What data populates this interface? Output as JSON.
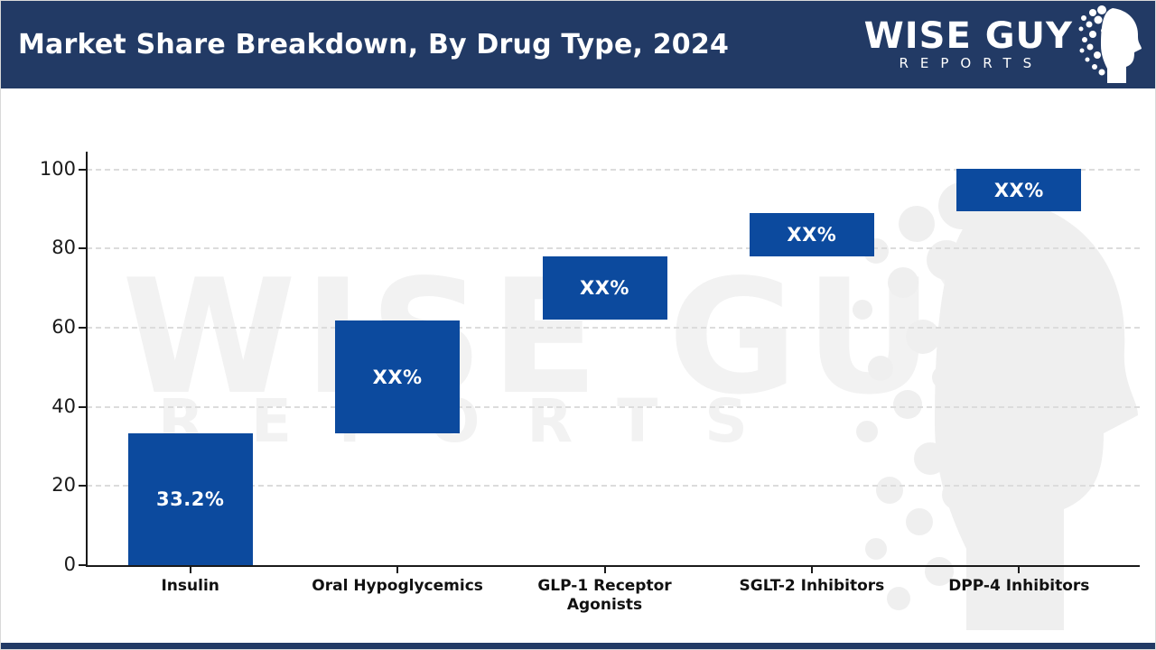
{
  "header": {
    "title": "Market Share Breakdown, By Drug Type, 2024",
    "logo": {
      "line1": "WISE GUY",
      "line2": "REPORTS"
    }
  },
  "watermark": {
    "line1": "WISE GUY",
    "line2": "REPORTS"
  },
  "colors": {
    "header_bg": "#223A65",
    "footer_bg": "#223A65",
    "bar": "#0C4A9E",
    "grid": "#DCDCDC",
    "axis": "#1A1A1A",
    "bar_label_text": "#FFFFFF",
    "watermark": "#F2F2F2"
  },
  "chart_data": {
    "type": "bar",
    "variant": "waterfall",
    "title": "Market Share Breakdown, By Drug Type, 2024",
    "xlabel": "",
    "ylabel": "",
    "categories": [
      "Insulin",
      "Oral Hypoglycemics",
      "GLP-1 Receptor\nAgonists",
      "SGLT-2 Inhibitors",
      "DPP-4 Inhibitors"
    ],
    "segments": [
      {
        "category": "Insulin",
        "start": 0,
        "end": 33.2,
        "label": "33.2%"
      },
      {
        "category": "Oral Hypoglycemics",
        "start": 33.2,
        "end": 61.8,
        "label": "XX%"
      },
      {
        "category": "GLP-1 Receptor Agonists",
        "start": 62.0,
        "end": 77.9,
        "label": "XX%"
      },
      {
        "category": "SGLT-2 Inhibitors",
        "start": 78.0,
        "end": 89.0,
        "label": "XX%"
      },
      {
        "category": "DPP-4 Inhibitors",
        "start": 89.3,
        "end": 100.2,
        "label": "XX%"
      }
    ],
    "yticks": [
      0,
      20,
      40,
      60,
      80,
      100
    ],
    "ylim": [
      0,
      104
    ],
    "grid": "horizontal-dashed",
    "legend": "none",
    "bar_color": "#0C4A9E"
  }
}
